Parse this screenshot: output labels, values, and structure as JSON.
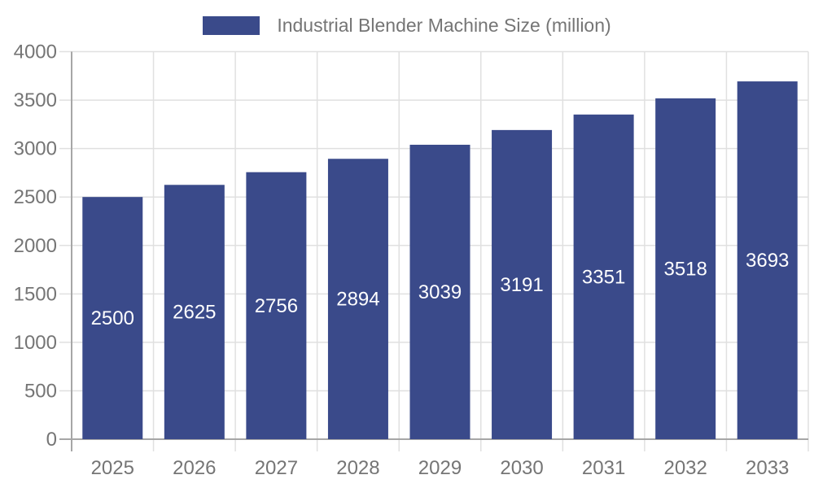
{
  "chart_data": {
    "type": "bar",
    "title": "Industrial Blender Machine Size (million)",
    "categories": [
      "2025",
      "2026",
      "2027",
      "2028",
      "2029",
      "2030",
      "2031",
      "2032",
      "2033"
    ],
    "values": [
      2500,
      2625,
      2756,
      2894,
      3039,
      3191,
      3351,
      3518,
      3693
    ],
    "xlabel": "",
    "ylabel": "",
    "ylim": [
      0,
      4000
    ],
    "ytick_step": 500,
    "grid": true,
    "legend_position": "top-center",
    "colors": {
      "bar": "#3A4A8A",
      "bar_value_label": "#FFFFFF",
      "axis_text": "#757575",
      "legend_text": "#757575",
      "gridline": "#E0E0E0",
      "axis_line": "#A6A6A6",
      "background": "#FFFFFF"
    }
  }
}
